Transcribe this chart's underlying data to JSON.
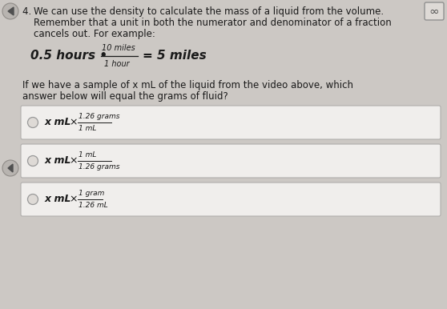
{
  "bg_color": "#ccc8c4",
  "box_color": "#f0eeec",
  "box_border_color": "#b0aeac",
  "text_color": "#1a1a1a",
  "question_number": "4. ",
  "line1": "We can use the density to calculate the mass of a liquid from the volume.",
  "line2": "Remember that a unit in both the numerator and denominator of a fraction",
  "line3": "cancels out. For example:",
  "example_main": "0.5 hours •",
  "example_numer": "10 miles",
  "example_denom": "1 hour",
  "example_result": "= 5 miles",
  "question_line1": "If we have a sample of x mL of the liquid from the video above, which",
  "question_line2": "answer below will equal the grams of fluid?",
  "choices": [
    {
      "main": "x mL",
      "times": "×",
      "numer": "1.26 grams",
      "denom": "1 mL"
    },
    {
      "main": "x mL",
      "times": "×",
      "numer": "1 mL",
      "denom": "1.26 grams"
    },
    {
      "main": "x mL",
      "times": "×",
      "numer": "1 gram",
      "denom": "1.26 mL"
    }
  ],
  "figw": 5.58,
  "figh": 3.86,
  "dpi": 100
}
